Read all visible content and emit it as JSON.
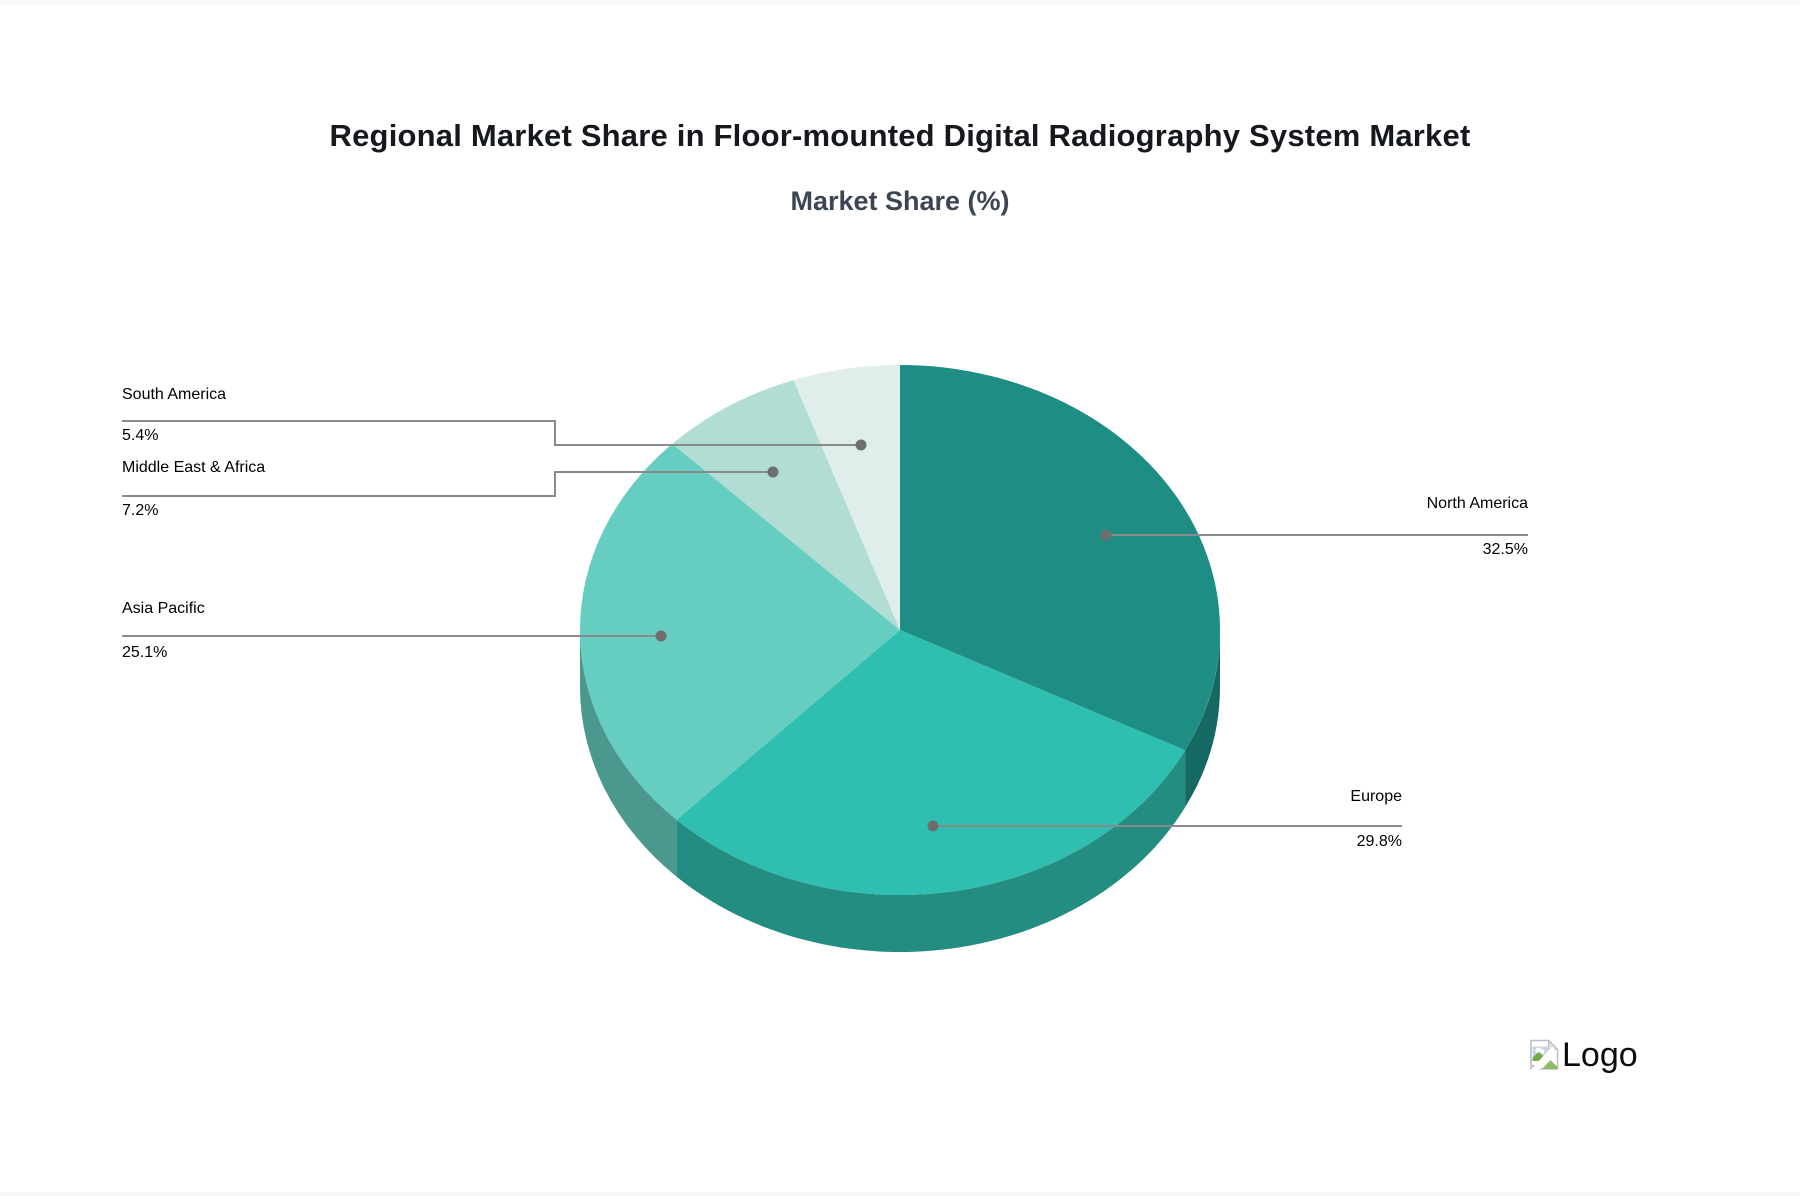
{
  "title": "Regional Market Share in Floor-mounted Digital Radiography System Market",
  "subtitle": "Market Share (%)",
  "logo": {
    "alt_text": "Logo"
  },
  "chart_data": {
    "type": "pie",
    "title": "Regional Market Share in Floor-mounted Digital Radiography System Market",
    "subtitle": "Market Share (%)",
    "unit": "%",
    "start_angle_deg": 0,
    "direction": "clockwise",
    "effect_3d": true,
    "legend_position": "callout-labels",
    "labels": [
      "North America",
      "Europe",
      "Asia Pacific",
      "Middle East & Africa",
      "South America"
    ],
    "values": [
      32.5,
      29.8,
      25.1,
      7.2,
      5.4
    ],
    "percent_labels": [
      "32.5%",
      "29.8%",
      "25.1%",
      "7.2%",
      "5.4%"
    ],
    "colors": [
      "#1e8e84",
      "#2fbfb0",
      "#66cec0",
      "#b2ddd5",
      "#dfeeea"
    ],
    "leader_line_color": "#8a8a8a",
    "label_text_color": "#26292d",
    "percent_text_color": "#9da2a8"
  },
  "callouts": {
    "north_america": {
      "label": "North America",
      "value": "32.5%"
    },
    "europe": {
      "label": "Europe",
      "value": "29.8%"
    },
    "asia_pacific": {
      "label": "Asia Pacific",
      "value": "25.1%"
    },
    "middle_east_africa": {
      "label": "Middle East & Africa",
      "value": "7.2%"
    },
    "south_america": {
      "label": "South America",
      "value": "5.4%"
    }
  }
}
